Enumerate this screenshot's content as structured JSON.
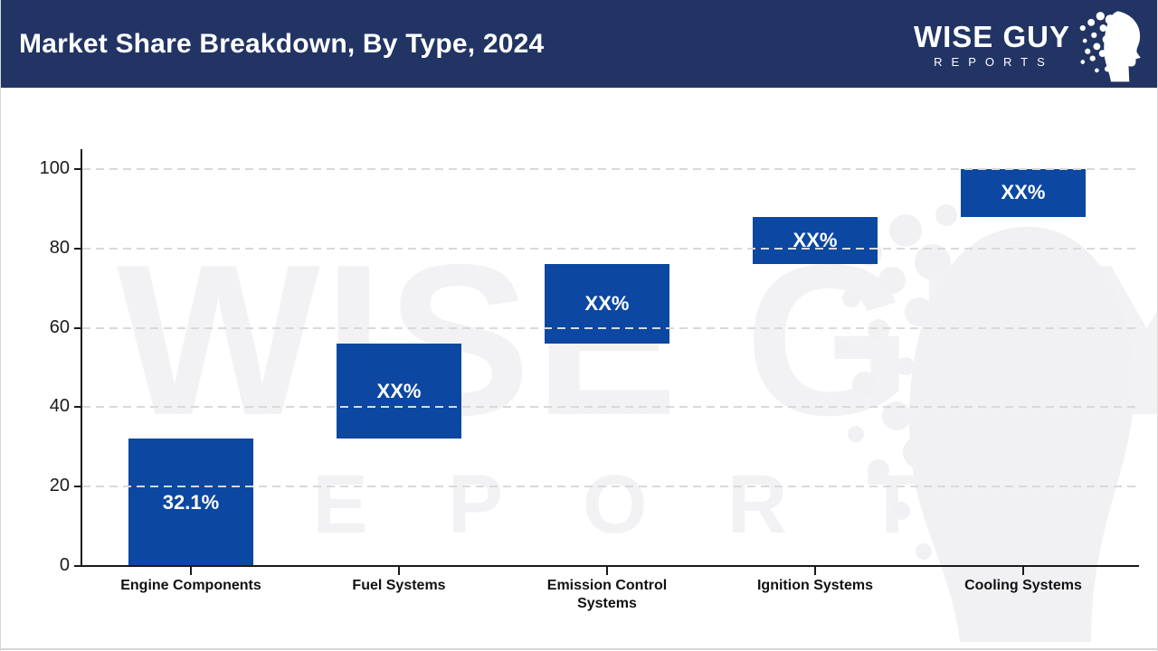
{
  "header": {
    "title": "Market Share Breakdown, By Type, 2024",
    "logo": {
      "name": "WISE GUY",
      "sub": "REPORTS"
    }
  },
  "watermark": {
    "line1": "WISE GUY",
    "line2": "REPORTS"
  },
  "chart_data": {
    "type": "bar",
    "variant": "floating-waterfall",
    "title": "Market Share Breakdown, By Type, 2024",
    "categories": [
      "Engine Components",
      "Fuel Systems",
      "Emission Control Systems",
      "Ignition Systems",
      "Cooling Systems"
    ],
    "segments": [
      {
        "category": "Engine Components",
        "start": 0,
        "end": 32.1,
        "label": "32.1%"
      },
      {
        "category": "Fuel Systems",
        "start": 32.1,
        "end": 56,
        "label": "XX%"
      },
      {
        "category": "Emission Control Systems",
        "start": 56,
        "end": 76,
        "label": "XX%"
      },
      {
        "category": "Ignition Systems",
        "start": 76,
        "end": 88,
        "label": "XX%"
      },
      {
        "category": "Cooling Systems",
        "start": 88,
        "end": 100,
        "label": "XX%"
      }
    ],
    "xlabel": "",
    "ylabel": "",
    "yticks": [
      0,
      20,
      40,
      60,
      80,
      100
    ],
    "ylim": [
      0,
      105
    ],
    "grid": "horizontal-dashed",
    "legend": "none",
    "bar_color": "#0c47a1",
    "label_color": "#ffffff",
    "background_color": "#ffffff",
    "header_color": "#213463"
  }
}
